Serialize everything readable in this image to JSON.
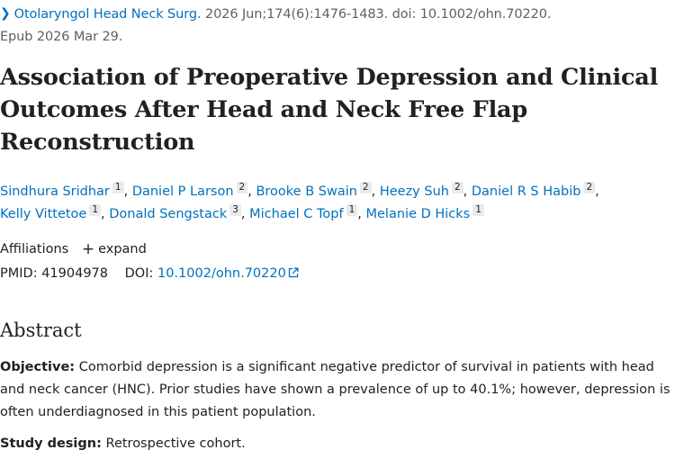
{
  "citation": {
    "journal": "Otolaryngol Head Neck Surg.",
    "details": " 2026 Jun;174(6):1476-1483. doi: 10.1002/ohn.70220.",
    "epub": "Epub 2026 Mar 29."
  },
  "article": {
    "title": "Association of Preoperative Depression and Clinical Outcomes After Head and Neck Free Flap Reconstruction"
  },
  "authors": [
    {
      "name": "Sindhura Sridhar",
      "affil": "1"
    },
    {
      "name": "Daniel P Larson",
      "affil": "2"
    },
    {
      "name": "Brooke B Swain",
      "affil": "2"
    },
    {
      "name": "Heezy Suh",
      "affil": "2"
    },
    {
      "name": "Daniel R S Habib",
      "affil": "2"
    },
    {
      "name": "Kelly Vittetoe",
      "affil": "1"
    },
    {
      "name": "Donald Sengstack",
      "affil": "3"
    },
    {
      "name": "Michael C Topf",
      "affil": "1"
    },
    {
      "name": "Melanie D Hicks",
      "affil": "1"
    }
  ],
  "affiliations": {
    "label": "Affiliations",
    "expand_label": "expand"
  },
  "identifiers": {
    "pmid_label": "PMID:",
    "pmid": "41904978",
    "doi_label": "DOI:",
    "doi": "10.1002/ohn.70220"
  },
  "abstract": {
    "heading": "Abstract",
    "objective_label": "Objective:",
    "objective_text": " Comorbid depression is a significant negative predictor of survival in patients with head and neck cancer (HNC). Prior studies have shown a prevalence of up to 40.1%; however, depression is often underdiagnosed in this patient population.",
    "design_label": "Study design:",
    "design_text": " Retrospective cohort."
  },
  "colors": {
    "link": "#0071bc",
    "text": "#212121",
    "muted": "#5b616b",
    "badge_bg": "#e9eaeb"
  },
  "icons": {
    "journal_chevron": "chevron-right-icon",
    "expand": "plus-icon",
    "doi_external": "external-link-icon"
  }
}
